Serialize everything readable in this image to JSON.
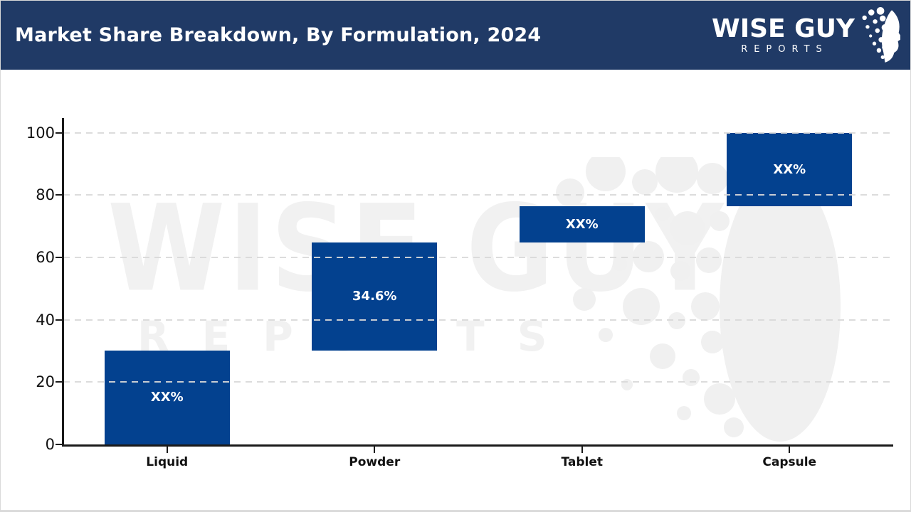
{
  "page": {
    "background": "#ffffff",
    "border_color": "#d9d9d9"
  },
  "header": {
    "bg_color": "#203a66",
    "title": "Market Share Breakdown, By Formulation, 2024",
    "logo": {
      "wordmark": "WISE GUY",
      "subtext": "REPORTS",
      "icon": "dotted-face-profile-icon"
    }
  },
  "watermark": {
    "wordmark": "WISE GUY",
    "subtext": "REPORTS",
    "icon": "dotted-face-profile-watermark",
    "color": "#f1f1f1"
  },
  "chart_data": {
    "type": "bar",
    "subtype": "floating-segment-bar (waterfall-style, cumulative market share)",
    "title": "Market Share Breakdown, By Formulation, 2024",
    "categories": [
      "Liquid",
      "Powder",
      "Tablet",
      "Capsule"
    ],
    "segments": [
      {
        "category": "Liquid",
        "start": 0,
        "end": 30.2,
        "value_label": "XX%"
      },
      {
        "category": "Powder",
        "start": 30.2,
        "end": 64.8,
        "value_label": "34.6%"
      },
      {
        "category": "Tablet",
        "start": 64.8,
        "end": 76.5,
        "value_label": "XX%"
      },
      {
        "category": "Capsule",
        "start": 76.5,
        "end": 100,
        "value_label": "XX%"
      }
    ],
    "xlabel": "",
    "ylabel": "",
    "yticks": [
      0,
      20,
      40,
      60,
      80,
      100
    ],
    "ylim": [
      0,
      105
    ],
    "grid": {
      "horizontal": true,
      "style": "dashed",
      "color": "#d9d9d9"
    },
    "legend": "none",
    "bar_color": "#03418f",
    "bar_label_color": "#ffffff",
    "axis_color": "#1a1a1a"
  }
}
